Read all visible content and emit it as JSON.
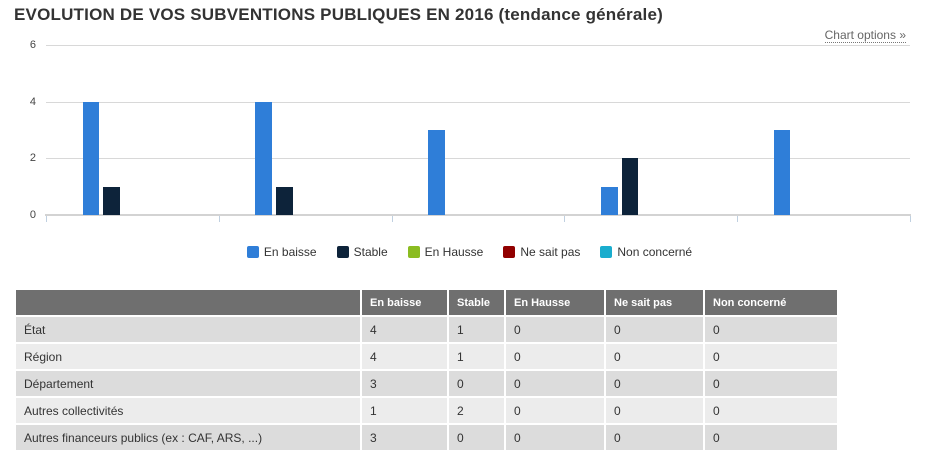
{
  "page": {
    "title": "EVOLUTION DE VOS SUBVENTIONS PUBLIQUES EN 2016 (tendance générale)",
    "chart_options_label": "Chart options »"
  },
  "chart_data": {
    "type": "bar",
    "title": "EVOLUTION DE VOS SUBVENTIONS PUBLIQUES EN 2016 (tendance générale)",
    "categories": [
      "État",
      "Région",
      "Département",
      "Autres collectivités",
      "Autres financeurs publics (ex : CAF, ARS, ...)"
    ],
    "series": [
      {
        "name": "En baisse",
        "color": "#2f7ed8",
        "values": [
          4,
          4,
          3,
          1,
          3
        ]
      },
      {
        "name": "Stable",
        "color": "#0d233a",
        "values": [
          1,
          1,
          0,
          2,
          0
        ]
      },
      {
        "name": "En Hausse",
        "color": "#8bbc21",
        "values": [
          0,
          0,
          0,
          0,
          0
        ]
      },
      {
        "name": "Ne sait pas",
        "color": "#910000",
        "values": [
          0,
          0,
          0,
          0,
          0
        ]
      },
      {
        "name": "Non concerné",
        "color": "#1aadce",
        "values": [
          0,
          0,
          0,
          0,
          0
        ]
      }
    ],
    "xlabel": "",
    "ylabel": "",
    "ylim": [
      0,
      6
    ],
    "yticks": [
      0,
      2,
      4,
      6
    ],
    "grid": true,
    "legend_position": "bottom"
  },
  "table": {
    "headers": [
      "",
      "En baisse",
      "Stable",
      "En Hausse",
      "Ne sait pas",
      "Non concerné"
    ],
    "rows": [
      {
        "label": "État",
        "values": [
          4,
          1,
          0,
          0,
          0
        ]
      },
      {
        "label": "Région",
        "values": [
          4,
          1,
          0,
          0,
          0
        ]
      },
      {
        "label": "Département",
        "values": [
          3,
          0,
          0,
          0,
          0
        ]
      },
      {
        "label": "Autres collectivités",
        "values": [
          1,
          2,
          0,
          0,
          0
        ]
      },
      {
        "label": "Autres financeurs publics (ex : CAF, ARS, ...)",
        "values": [
          3,
          0,
          0,
          0,
          0
        ]
      }
    ]
  }
}
